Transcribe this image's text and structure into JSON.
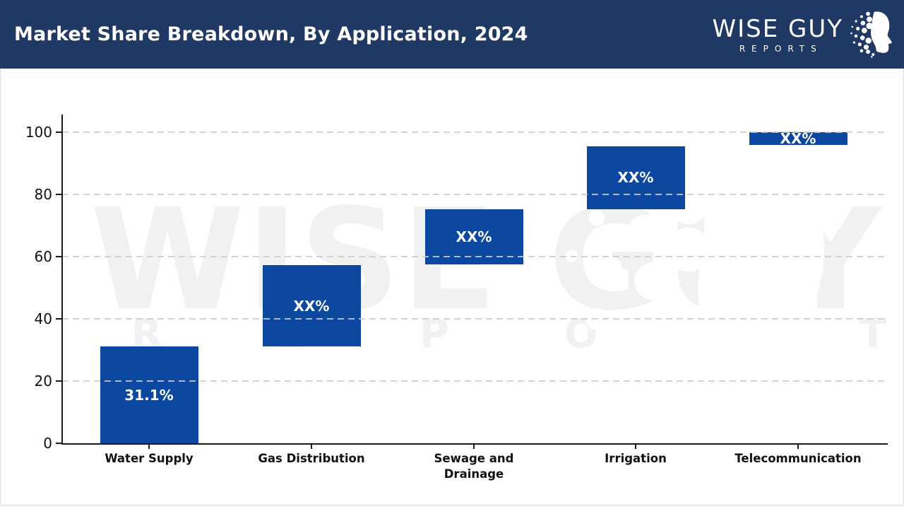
{
  "header": {
    "title": "Market Share Breakdown, By Application, 2024",
    "logo": {
      "line1": "WISE GUY",
      "line2": "REPORTS"
    }
  },
  "watermark": {
    "line1": "WISE GUY",
    "line2": "REPORTS"
  },
  "chart_data": {
    "type": "bar",
    "variant": "waterfall",
    "title": "Market Share Breakdown, By Application, 2024",
    "categories": [
      "Water Supply",
      "Gas Distribution",
      "Sewage and Drainage",
      "Irrigation",
      "Telecommunication"
    ],
    "category_labels": [
      "Water Supply",
      "Gas Distribution",
      "Sewage and\nDrainage",
      "Irrigation",
      "Telecommunication"
    ],
    "segments": [
      {
        "category": "Water Supply",
        "start": 0,
        "end": 31.1,
        "label": "31.1%"
      },
      {
        "category": "Gas Distribution",
        "start": 31.1,
        "end": 57.3,
        "label": "XX%"
      },
      {
        "category": "Sewage and Drainage",
        "start": 57.5,
        "end": 75.2,
        "label": "XX%"
      },
      {
        "category": "Irrigation",
        "start": 75.3,
        "end": 95.5,
        "label": "XX%"
      },
      {
        "category": "Telecommunication",
        "start": 95.9,
        "end": 100.0,
        "label": "XX%"
      }
    ],
    "ylim": [
      0,
      100
    ],
    "yticks": [
      0,
      20,
      40,
      60,
      80,
      100
    ],
    "grid": "horizontal-dashed",
    "legend": "none"
  },
  "colors": {
    "header_bg": "#1f3864",
    "bar": "#0d48a0",
    "axis": "#1a1a1a",
    "watermark": "#f1f1f3"
  }
}
